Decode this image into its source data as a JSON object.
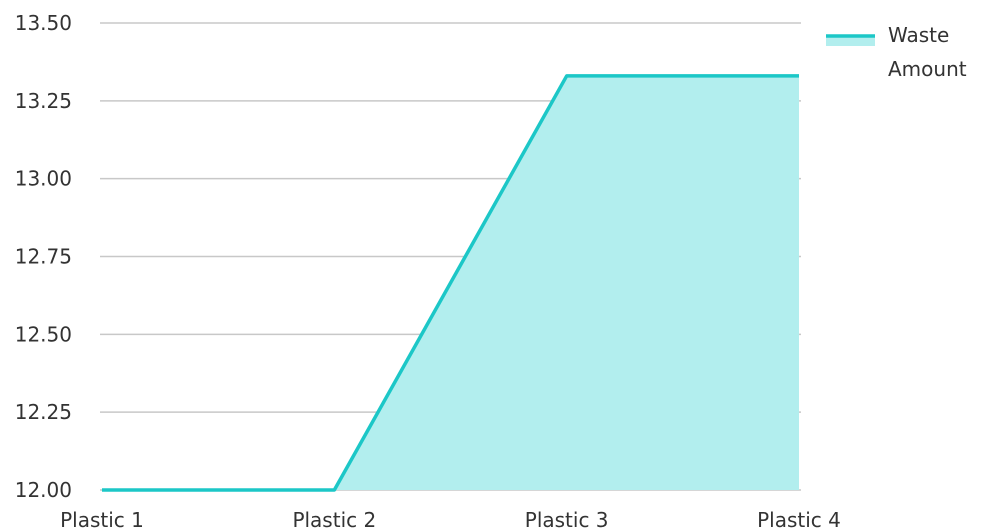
{
  "chart_data": {
    "type": "area",
    "categories": [
      "Plastic 1",
      "Plastic 2",
      "Plastic 3",
      "Plastic 4"
    ],
    "series": [
      {
        "name": "Waste Amount",
        "values": [
          12.0,
          12.0,
          13.33,
          13.33
        ],
        "color": "#1cc7c7",
        "fill": "#b2eeee"
      }
    ],
    "yticks": [
      "12.00",
      "12.25",
      "12.50",
      "12.75",
      "13.00",
      "13.25",
      "13.50"
    ],
    "ylim": [
      12.0,
      13.5
    ],
    "grid": true,
    "legend": {
      "position": "top-right",
      "lines": [
        "Waste",
        "Amount"
      ]
    }
  }
}
